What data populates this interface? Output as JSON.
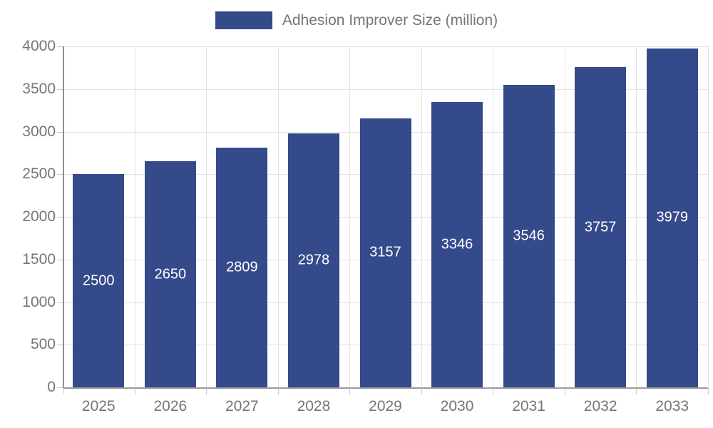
{
  "chart_data": {
    "type": "bar",
    "title": "",
    "legend": "Adhesion Improver Size (million)",
    "legend_position": "top",
    "categories": [
      "2025",
      "2026",
      "2027",
      "2028",
      "2029",
      "2030",
      "2031",
      "2032",
      "2033"
    ],
    "values": [
      2500,
      2650,
      2809,
      2978,
      3157,
      3346,
      3546,
      3757,
      3979
    ],
    "xlabel": "",
    "ylabel": "",
    "ylim": [
      0,
      4000
    ],
    "yticks": [
      0,
      500,
      1000,
      1500,
      2000,
      2500,
      3000,
      3500,
      4000
    ],
    "grid": true,
    "colors": {
      "bar": "#354a8a",
      "bar_value_label": "#ffffff",
      "axis_text": "#757575",
      "gridline": "#e2e2e2",
      "axis_line": "#8e8e8e"
    }
  }
}
